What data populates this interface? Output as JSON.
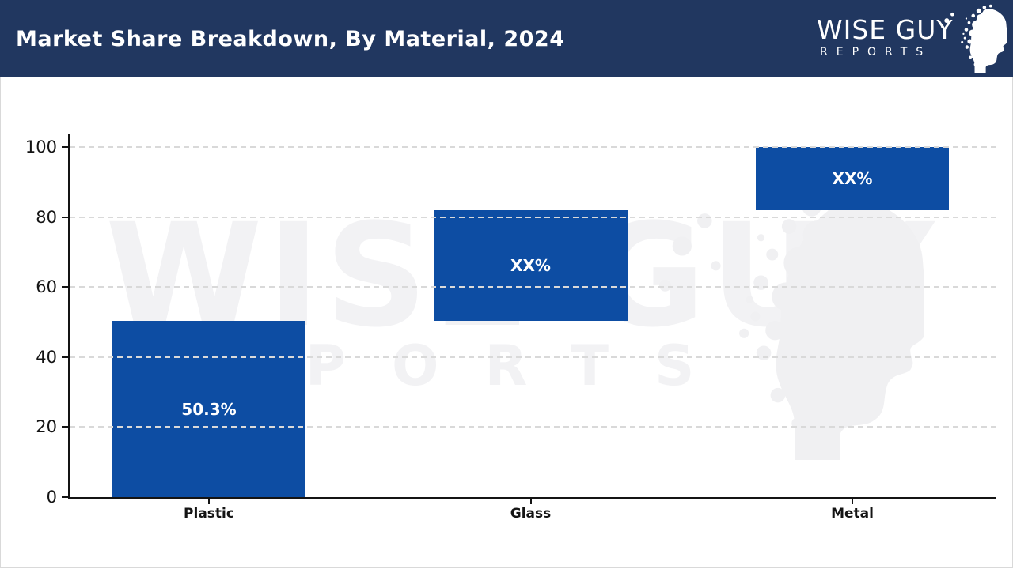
{
  "header": {
    "title": "Market Share Breakdown, By Material, 2024",
    "bg_color": "#213760",
    "logo": {
      "name": "WISE GUY",
      "sub": "REPORTS"
    }
  },
  "watermark": {
    "line1": "WISE GUY",
    "line2": "REPORTS"
  },
  "chart_data": {
    "type": "bar",
    "variant": "floating-waterfall-bars",
    "title": "Market Share Breakdown, By Material, 2024",
    "categories": [
      "Plastic",
      "Glass",
      "Metal"
    ],
    "segments": [
      {
        "category": "Plastic",
        "start": 0,
        "end": 50.3,
        "label": "50.3%"
      },
      {
        "category": "Glass",
        "start": 50.3,
        "end": 82,
        "label": "XX%"
      },
      {
        "category": "Metal",
        "start": 82,
        "end": 100,
        "label": "XX%"
      }
    ],
    "xlabel": "",
    "ylabel": "",
    "ylim": [
      0,
      100
    ],
    "yticks": [
      0,
      20,
      40,
      60,
      80,
      100
    ],
    "grid": "horizontal-dashed",
    "legend": "none",
    "bar_color": "#0d4da3",
    "bar_label_color": "#ffffff",
    "grid_color": "#d9d9d9",
    "axis_color": "#141414"
  }
}
